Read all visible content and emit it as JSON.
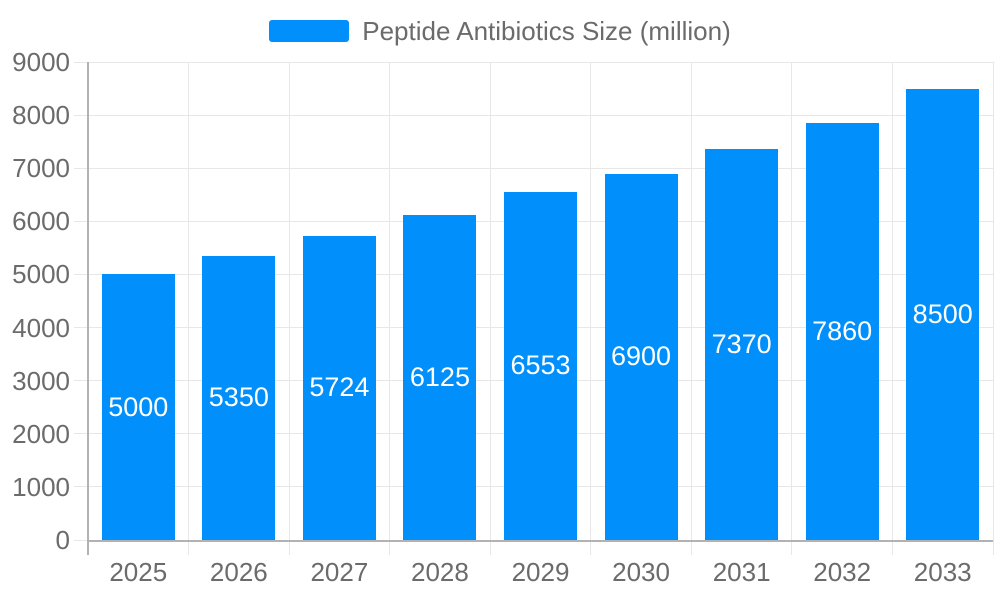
{
  "legend": {
    "label": "Peptide Antibiotics Size (million)"
  },
  "colors": {
    "bar": "#008FFB",
    "grid": "#e7e7e7",
    "axis_line": "#b2b2b2",
    "axis_label": "#6b6b6b",
    "legend_label": "#6b6b6b",
    "data_label": "#ffffff",
    "background": "#ffffff"
  },
  "chart_data": {
    "type": "bar",
    "title": "",
    "series_name": "Peptide Antibiotics Size (million)",
    "categories": [
      "2025",
      "2026",
      "2027",
      "2028",
      "2029",
      "2030",
      "2031",
      "2032",
      "2033"
    ],
    "values": [
      5000,
      5350,
      5724,
      6125,
      6553,
      6900,
      7370,
      7860,
      8500
    ],
    "xlabel": "",
    "ylabel": "",
    "ylim": [
      0,
      9000
    ],
    "ytick_step": 1000,
    "grid": true,
    "legend_position": "top",
    "data_labels": "inside-center"
  }
}
